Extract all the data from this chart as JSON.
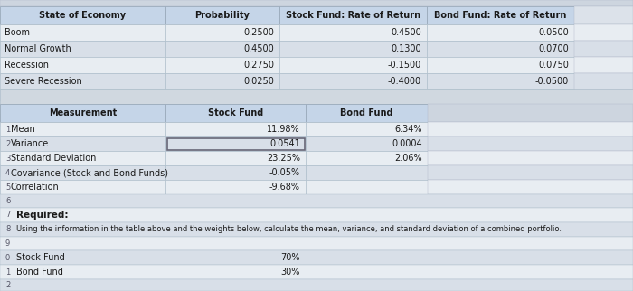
{
  "header1": [
    "State of Economy",
    "Probability",
    "Stock Fund: Rate of Return",
    "Bond Fund: Rate of Return"
  ],
  "rows1": [
    [
      "Boom",
      "0.2500",
      "0.4500",
      "0.0500"
    ],
    [
      "Normal Growth",
      "0.4500",
      "0.1300",
      "0.0700"
    ],
    [
      "Recession",
      "0.2750",
      "-0.1500",
      "0.0750"
    ],
    [
      "Severe Recession",
      "0.0250",
      "-0.4000",
      "-0.0500"
    ]
  ],
  "header2": [
    "Measurement",
    "Stock Fund",
    "Bond Fund"
  ],
  "rows2": [
    [
      "Mean",
      "11.98%",
      "6.34%"
    ],
    [
      "Variance",
      "0.0541",
      "0.0004"
    ],
    [
      "Standard Deviation",
      "23.25%",
      "2.06%"
    ],
    [
      "Covariance (Stock and Bond Funds)",
      "-0.05%",
      ""
    ],
    [
      "Correlation",
      "-9.68%",
      ""
    ]
  ],
  "required_text": "Required:",
  "using_text": "Using the information in the table above and the weights below, calculate the mean, variance, and standard deviation of a combined portfolio.",
  "weights": [
    [
      "Stock Fund",
      "70%"
    ],
    [
      "Bond Fund",
      "30%"
    ]
  ],
  "header_bg": "#c5d5e8",
  "row_bg_even": "#e8edf2",
  "row_bg_odd": "#d8dfe8",
  "sep_bg": "#d0d8e0",
  "req_bg": "#e0e5ea",
  "using_bg": "#e8edf2",
  "empty_bg": "#dce2e8",
  "grid_color": "#b0b8c8",
  "text_color": "#1a1a1a",
  "bg_stripe1": "#dce2ea",
  "bg_stripe2": "#cdd5df"
}
